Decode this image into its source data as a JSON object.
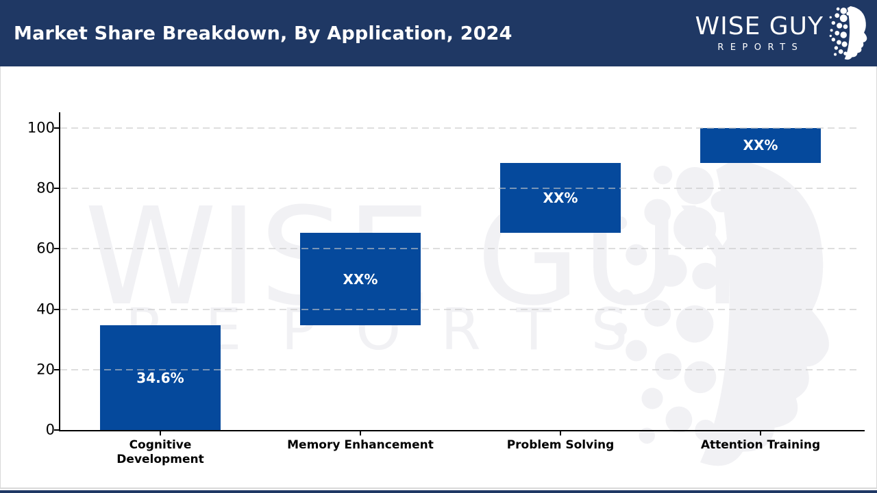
{
  "header": {
    "title": "Market Share Breakdown, By Application, 2024",
    "logo": {
      "wordmark": "WISE GUY",
      "reports": "REPORTS"
    }
  },
  "watermark": {
    "wordmark": "WISE GUY",
    "reports": "REPORTS"
  },
  "colors": {
    "header_bg": "#1f3864",
    "bar": "#05499c",
    "gridline": "#d9d9d9",
    "watermark": "#f1f1f4",
    "value_label": "#ffffff"
  },
  "chart_data": {
    "type": "bar",
    "subtype": "stacked-waterfall-floating-bars",
    "title": "Market Share Breakdown, By Application, 2024",
    "categories": [
      "Cognitive\nDevelopment",
      "Memory Enhancement",
      "Problem Solving",
      "Attention Training"
    ],
    "segments": [
      {
        "category": "Cognitive Development",
        "start": 0,
        "end": 34.6,
        "label": "34.6%"
      },
      {
        "category": "Memory Enhancement",
        "start": 34.6,
        "end": 65.3,
        "label": "XX%"
      },
      {
        "category": "Problem Solving",
        "start": 65.3,
        "end": 88.5,
        "label": "XX%"
      },
      {
        "category": "Attention Training",
        "start": 88.5,
        "end": 100,
        "label": "XX%"
      }
    ],
    "values": [
      34.6,
      30.7,
      23.2,
      11.5
    ],
    "value_labels": [
      "34.6%",
      "XX%",
      "XX%",
      "XX%"
    ],
    "xlabel": "",
    "ylabel": "",
    "yticks": [
      0,
      20,
      40,
      60,
      80,
      100
    ],
    "ylim": [
      0,
      105
    ],
    "grid": "horizontal-dashed",
    "legend": "none"
  }
}
